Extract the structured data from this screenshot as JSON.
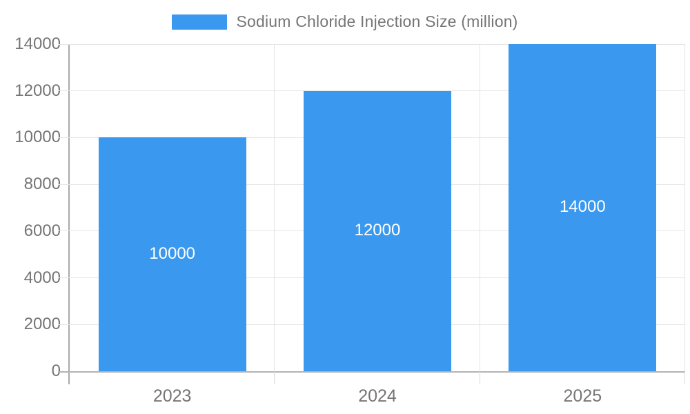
{
  "chart_data": {
    "type": "bar",
    "title": "Sodium Chloride Injection Size (million)",
    "categories": [
      "2023",
      "2024",
      "2025"
    ],
    "values": [
      10000,
      12000,
      14000
    ],
    "bar_value_labels": [
      "10000",
      "12000",
      "14000"
    ],
    "xlabel": "",
    "ylabel": "",
    "ylim": [
      0,
      14000
    ],
    "ytick_step": 2000,
    "ytick_labels": [
      "0",
      "2000",
      "4000",
      "6000",
      "8000",
      "10000",
      "12000",
      "14000"
    ],
    "grid": "on",
    "legend_position": "top",
    "bar_color": "#3A99EE",
    "bar_label_color": "#ffffff",
    "axis_label_color": "#757575",
    "gridline_color": "#e6e6e6"
  }
}
